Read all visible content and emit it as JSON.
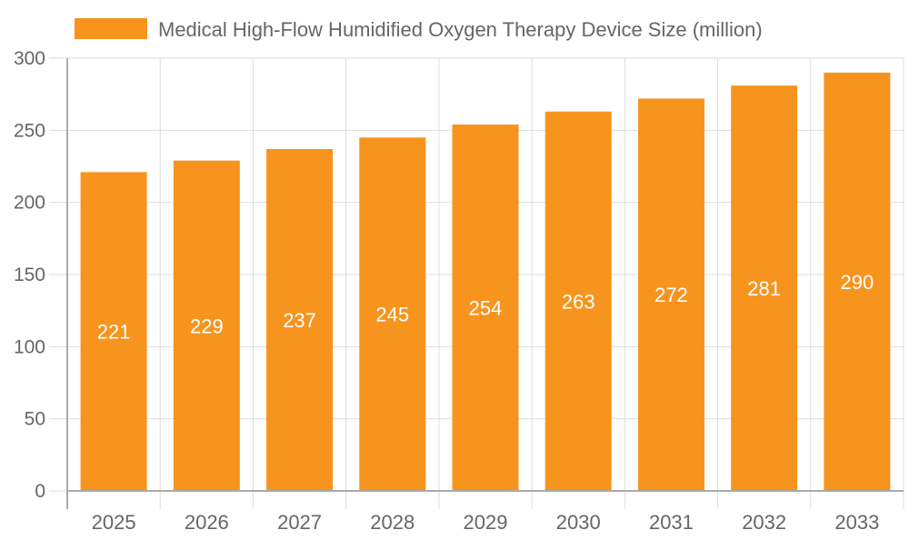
{
  "chart_data": {
    "type": "bar",
    "categories": [
      "2025",
      "2026",
      "2027",
      "2028",
      "2029",
      "2030",
      "2031",
      "2032",
      "2033"
    ],
    "series": [
      {
        "name": "Medical High-Flow Humidified Oxygen Therapy Device Size (million)",
        "values": [
          221,
          229,
          237,
          245,
          254,
          263,
          272,
          281,
          290
        ]
      }
    ],
    "ylim": [
      0,
      300
    ],
    "yticks": [
      0,
      50,
      100,
      150,
      200,
      250,
      300
    ],
    "grid": true,
    "legend": "top",
    "data_labels": true,
    "colors": {
      "bar": "#f7941e",
      "label": "#ffffff",
      "text": "#666666",
      "grid": "#dddddd",
      "axis": "#aaaaaa"
    }
  }
}
